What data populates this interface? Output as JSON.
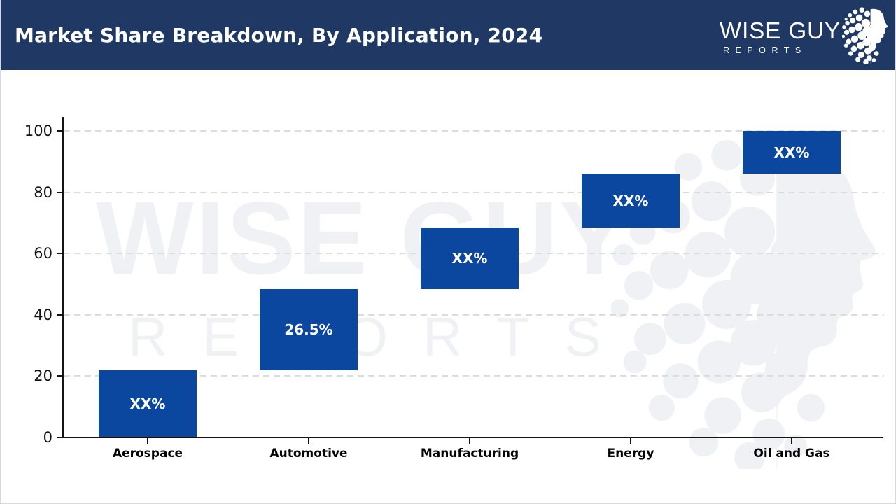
{
  "header": {
    "title": "Market Share Breakdown, By Application, 2024",
    "logo": {
      "wordmark": "WISE GUY",
      "subtext": "REPORTS"
    }
  },
  "watermark": {
    "wordmark": "WISE GUY",
    "subtext": "REPORTS"
  },
  "chart_data": {
    "type": "bar",
    "subtype": "waterfall-floating-bars",
    "title": "Market Share Breakdown, By Application, 2024",
    "categories": [
      "Aerospace",
      "Automotive",
      "Manufacturing",
      "Energy",
      "Oil and Gas"
    ],
    "segments": [
      {
        "category": "Aerospace",
        "start": 0,
        "end": 22,
        "label": "XX%"
      },
      {
        "category": "Automotive",
        "start": 22,
        "end": 48.5,
        "label": "26.5%"
      },
      {
        "category": "Manufacturing",
        "start": 48.5,
        "end": 68.5,
        "label": "XX%"
      },
      {
        "category": "Energy",
        "start": 68.5,
        "end": 86,
        "label": "XX%"
      },
      {
        "category": "Oil and Gas",
        "start": 86,
        "end": 100,
        "label": "XX%"
      }
    ],
    "y_axis": {
      "ticks": [
        0,
        20,
        40,
        60,
        80,
        100
      ],
      "range": [
        0,
        104.5
      ],
      "label": ""
    },
    "x_axis": {
      "label": "",
      "tick_labels": [
        "Aerospace",
        "Automotive",
        "Manufacturing",
        "Energy",
        "Oil and Gas"
      ]
    },
    "legend": "none",
    "grid": "horizontal-dashed",
    "style": {
      "bar_color": "#0b479e",
      "bar_label_color": "#ffffff",
      "grid_color": "#dcdcdc",
      "axis_color": "#141414",
      "header_bg": "#1f3864",
      "watermark_color": "#f0f1f4"
    }
  }
}
